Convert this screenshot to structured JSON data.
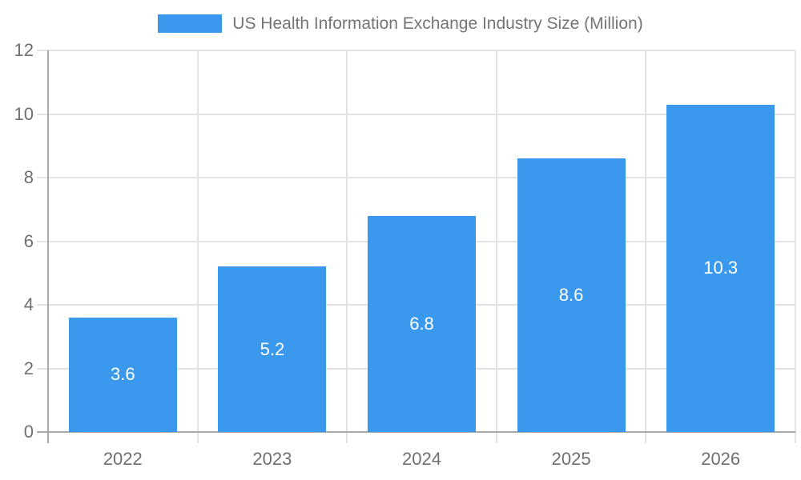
{
  "chart_data": {
    "type": "bar",
    "title": "US Health Information Exchange Industry Size (Million)",
    "legend": {
      "position": "top",
      "entries": [
        "US Health Information Exchange Industry Size (Million)"
      ]
    },
    "categories": [
      "2022",
      "2023",
      "2024",
      "2025",
      "2026"
    ],
    "series": [
      {
        "name": "US Health Information Exchange Industry Size (Million)",
        "values": [
          3.6,
          5.2,
          6.8,
          8.6,
          10.3
        ]
      }
    ],
    "value_labels": [
      "3.6",
      "5.2",
      "6.8",
      "8.6",
      "10.3"
    ],
    "xlabel": "",
    "ylabel": "",
    "ylim": [
      0,
      12
    ],
    "yticks": [
      0,
      2,
      4,
      6,
      8,
      10,
      12
    ],
    "grid": true,
    "colors": {
      "bar": "#3B99ED",
      "grid": "#E2E2E2",
      "axis": "#A9A9A9",
      "tick_label": "#6F6F6F",
      "legend_text": "#757575",
      "value_label": "#FFFFFF",
      "background": "#FFFFFF"
    }
  }
}
